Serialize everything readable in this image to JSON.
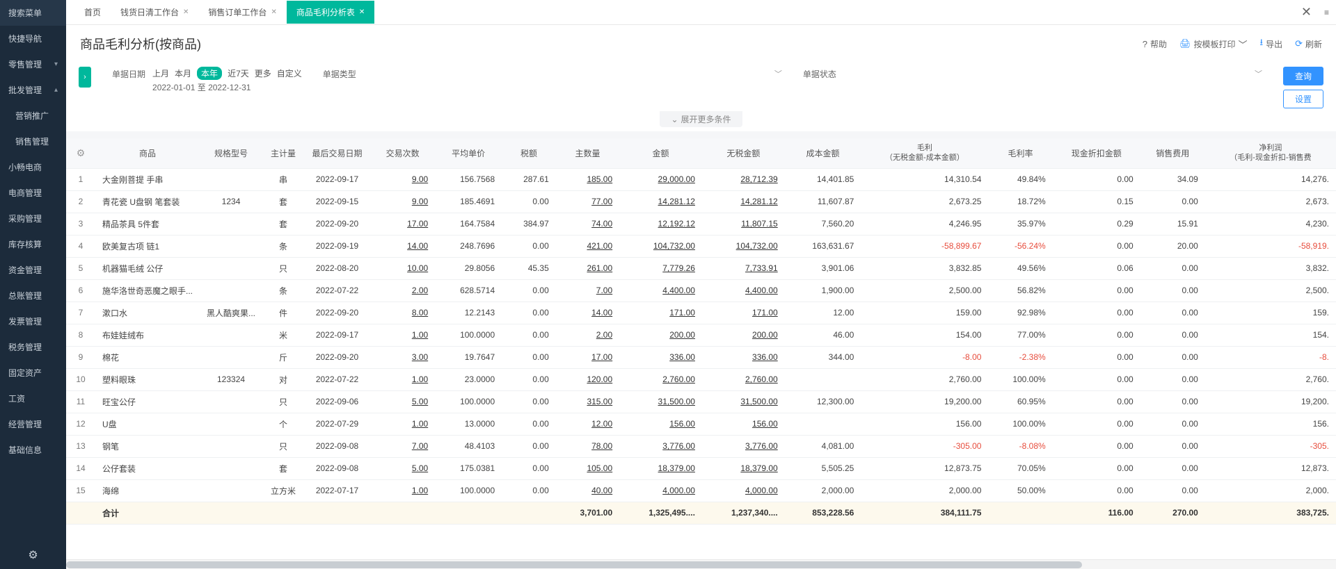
{
  "sidebar": {
    "items": [
      {
        "label": "搜索菜单",
        "arrow": false
      },
      {
        "label": "快捷导航",
        "arrow": false
      },
      {
        "label": "零售管理",
        "arrow": true,
        "expanded": false
      },
      {
        "label": "批发管理",
        "arrow": true,
        "expanded": true
      },
      {
        "label": "营销推广",
        "arrow": false,
        "indent": true
      },
      {
        "label": "销售管理",
        "arrow": false,
        "indent": true
      },
      {
        "label": "小畅电商",
        "arrow": false
      },
      {
        "label": "电商管理",
        "arrow": false
      },
      {
        "label": "采购管理",
        "arrow": false
      },
      {
        "label": "库存核算",
        "arrow": false
      },
      {
        "label": "资金管理",
        "arrow": false
      },
      {
        "label": "总账管理",
        "arrow": false
      },
      {
        "label": "发票管理",
        "arrow": false
      },
      {
        "label": "税务管理",
        "arrow": false
      },
      {
        "label": "固定资产",
        "arrow": false
      },
      {
        "label": "工资",
        "arrow": false
      },
      {
        "label": "经营管理",
        "arrow": false
      },
      {
        "label": "基础信息",
        "arrow": false
      }
    ]
  },
  "tabs": [
    {
      "label": "首页",
      "closable": false
    },
    {
      "label": "钱货日清工作台",
      "closable": true
    },
    {
      "label": "销售订单工作台",
      "closable": true
    },
    {
      "label": "商品毛利分析表",
      "closable": true,
      "active": true
    }
  ],
  "page": {
    "title": "商品毛利分析(按商品)",
    "actions": {
      "help": "帮助",
      "print": "按模板打印",
      "export": "导出",
      "refresh": "刷新"
    }
  },
  "filters": {
    "date_label": "单据日期",
    "date_options": [
      "上月",
      "本月",
      "本年",
      "近7天",
      "更多",
      "自定义"
    ],
    "date_active": "本年",
    "date_range": "2022-01-01 至 2022-12-31",
    "type_label": "单据类型",
    "status_label": "单据状态",
    "query_btn": "查询",
    "settings_btn": "设置",
    "expand_more": "展开更多条件"
  },
  "table": {
    "columns": [
      "",
      "商品",
      "规格型号",
      "主计量",
      "最后交易日期",
      "交易次数",
      "平均单价",
      "税额",
      "主数量",
      "金额",
      "无税金额",
      "成本金额",
      "毛利\n（无税金额-成本金额）",
      "毛利率",
      "现金折扣金额",
      "销售费用",
      "净利润\n（毛利-现金折扣-销售费"
    ],
    "rows": [
      {
        "idx": 1,
        "name": "大金刚菩提 手串",
        "spec": "",
        "unit": "串",
        "date": "2022-09-17",
        "cnt": "9.00",
        "price": "156.7568",
        "tax": "287.61",
        "qty": "185.00",
        "amt": "29,000.00",
        "notax": "28,712.39",
        "cost": "14,401.85",
        "gross": "14,310.54",
        "rate": "49.84%",
        "disc": "0.00",
        "fee": "34.09",
        "net": "14,276."
      },
      {
        "idx": 2,
        "name": "青花瓷 U盘钢 笔套装",
        "spec": "1234",
        "unit": "套",
        "date": "2022-09-15",
        "cnt": "9.00",
        "price": "185.4691",
        "tax": "0.00",
        "qty": "77.00",
        "amt": "14,281.12",
        "notax": "14,281.12",
        "cost": "11,607.87",
        "gross": "2,673.25",
        "rate": "18.72%",
        "disc": "0.15",
        "fee": "0.00",
        "net": "2,673."
      },
      {
        "idx": 3,
        "name": "精品茶具 5件套",
        "spec": "",
        "unit": "套",
        "date": "2022-09-20",
        "cnt": "17.00",
        "price": "164.7584",
        "tax": "384.97",
        "qty": "74.00",
        "amt": "12,192.12",
        "notax": "11,807.15",
        "cost": "7,560.20",
        "gross": "4,246.95",
        "rate": "35.97%",
        "disc": "0.29",
        "fee": "15.91",
        "net": "4,230."
      },
      {
        "idx": 4,
        "name": "欧美复古项 链1",
        "spec": "",
        "unit": "条",
        "date": "2022-09-19",
        "cnt": "14.00",
        "price": "248.7696",
        "tax": "0.00",
        "qty": "421.00",
        "amt": "104,732.00",
        "notax": "104,732.00",
        "cost": "163,631.67",
        "gross": "-58,899.67",
        "rate": "-56.24%",
        "disc": "0.00",
        "fee": "20.00",
        "net": "-58,919.",
        "neg": true
      },
      {
        "idx": 5,
        "name": "机器猫毛绒 公仔",
        "spec": "",
        "unit": "只",
        "date": "2022-08-20",
        "cnt": "10.00",
        "price": "29.8056",
        "tax": "45.35",
        "qty": "261.00",
        "amt": "7,779.26",
        "notax": "7,733.91",
        "cost": "3,901.06",
        "gross": "3,832.85",
        "rate": "49.56%",
        "disc": "0.06",
        "fee": "0.00",
        "net": "3,832."
      },
      {
        "idx": 6,
        "name": "施华洛世奇恶魔之眼手...",
        "spec": "",
        "unit": "条",
        "date": "2022-07-22",
        "cnt": "2.00",
        "price": "628.5714",
        "tax": "0.00",
        "qty": "7.00",
        "amt": "4,400.00",
        "notax": "4,400.00",
        "cost": "1,900.00",
        "gross": "2,500.00",
        "rate": "56.82%",
        "disc": "0.00",
        "fee": "0.00",
        "net": "2,500."
      },
      {
        "idx": 7,
        "name": "漱口水",
        "spec": "黑人酷爽果...",
        "unit": "件",
        "date": "2022-09-20",
        "cnt": "8.00",
        "price": "12.2143",
        "tax": "0.00",
        "qty": "14.00",
        "amt": "171.00",
        "notax": "171.00",
        "cost": "12.00",
        "gross": "159.00",
        "rate": "92.98%",
        "disc": "0.00",
        "fee": "0.00",
        "net": "159."
      },
      {
        "idx": 8,
        "name": "布娃娃绒布",
        "spec": "",
        "unit": "米",
        "date": "2022-09-17",
        "cnt": "1.00",
        "price": "100.0000",
        "tax": "0.00",
        "qty": "2.00",
        "amt": "200.00",
        "notax": "200.00",
        "cost": "46.00",
        "gross": "154.00",
        "rate": "77.00%",
        "disc": "0.00",
        "fee": "0.00",
        "net": "154."
      },
      {
        "idx": 9,
        "name": "棉花",
        "spec": "",
        "unit": "斤",
        "date": "2022-09-20",
        "cnt": "3.00",
        "price": "19.7647",
        "tax": "0.00",
        "qty": "17.00",
        "amt": "336.00",
        "notax": "336.00",
        "cost": "344.00",
        "gross": "-8.00",
        "rate": "-2.38%",
        "disc": "0.00",
        "fee": "0.00",
        "net": "-8.",
        "neg": true
      },
      {
        "idx": 10,
        "name": "塑料眼珠",
        "spec": "123324",
        "unit": "对",
        "date": "2022-07-22",
        "cnt": "1.00",
        "price": "23.0000",
        "tax": "0.00",
        "qty": "120.00",
        "amt": "2,760.00",
        "notax": "2,760.00",
        "cost": "",
        "gross": "2,760.00",
        "rate": "100.00%",
        "disc": "0.00",
        "fee": "0.00",
        "net": "2,760."
      },
      {
        "idx": 11,
        "name": "旺宝公仔",
        "spec": "",
        "unit": "只",
        "date": "2022-09-06",
        "cnt": "5.00",
        "price": "100.0000",
        "tax": "0.00",
        "qty": "315.00",
        "amt": "31,500.00",
        "notax": "31,500.00",
        "cost": "12,300.00",
        "gross": "19,200.00",
        "rate": "60.95%",
        "disc": "0.00",
        "fee": "0.00",
        "net": "19,200."
      },
      {
        "idx": 12,
        "name": "U盘",
        "spec": "",
        "unit": "个",
        "date": "2022-07-29",
        "cnt": "1.00",
        "price": "13.0000",
        "tax": "0.00",
        "qty": "12.00",
        "amt": "156.00",
        "notax": "156.00",
        "cost": "",
        "gross": "156.00",
        "rate": "100.00%",
        "disc": "0.00",
        "fee": "0.00",
        "net": "156."
      },
      {
        "idx": 13,
        "name": "钢笔",
        "spec": "",
        "unit": "只",
        "date": "2022-09-08",
        "cnt": "7.00",
        "price": "48.4103",
        "tax": "0.00",
        "qty": "78.00",
        "amt": "3,776.00",
        "notax": "3,776.00",
        "cost": "4,081.00",
        "gross": "-305.00",
        "rate": "-8.08%",
        "disc": "0.00",
        "fee": "0.00",
        "net": "-305.",
        "neg": true
      },
      {
        "idx": 14,
        "name": "公仔套装",
        "spec": "",
        "unit": "套",
        "date": "2022-09-08",
        "cnt": "5.00",
        "price": "175.0381",
        "tax": "0.00",
        "qty": "105.00",
        "amt": "18,379.00",
        "notax": "18,379.00",
        "cost": "5,505.25",
        "gross": "12,873.75",
        "rate": "70.05%",
        "disc": "0.00",
        "fee": "0.00",
        "net": "12,873."
      },
      {
        "idx": 15,
        "name": "海绵",
        "spec": "",
        "unit": "立方米",
        "date": "2022-07-17",
        "cnt": "1.00",
        "price": "100.0000",
        "tax": "0.00",
        "qty": "40.00",
        "amt": "4,000.00",
        "notax": "4,000.00",
        "cost": "2,000.00",
        "gross": "2,000.00",
        "rate": "50.00%",
        "disc": "0.00",
        "fee": "0.00",
        "net": "2,000."
      }
    ],
    "totals": {
      "label": "合计",
      "qty": "3,701.00",
      "amt": "1,325,495....",
      "notax": "1,237,340....",
      "cost": "853,228.56",
      "gross": "384,111.75",
      "disc": "116.00",
      "fee": "270.00",
      "net": "383,725."
    }
  }
}
